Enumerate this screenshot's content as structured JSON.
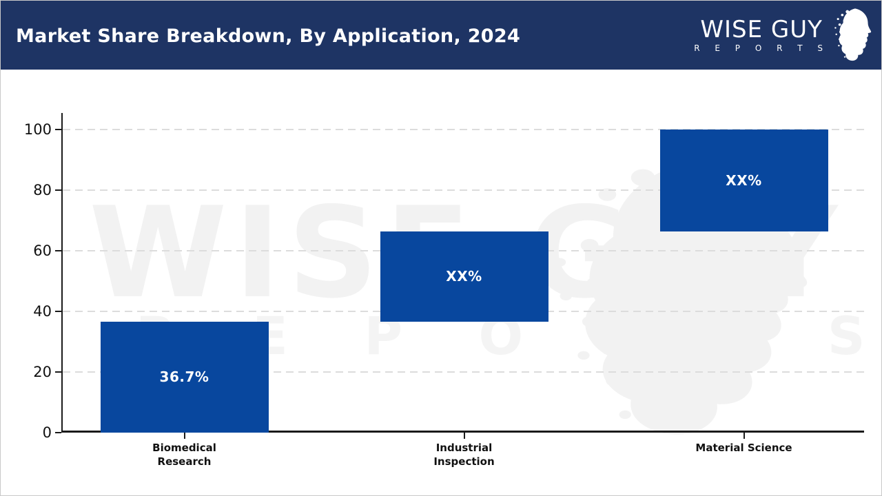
{
  "header": {
    "logo": {
      "line1": "WISE GUY",
      "line2": "R E P O R T S"
    }
  },
  "watermark": {
    "line1": "WISE GUY",
    "line2": "R E P O R T S"
  },
  "colors": {
    "header_bg": "#1e3464",
    "bar": "#08479e",
    "grid": "#dcdcdc",
    "axis": "#1a1a1a",
    "bar_label": "#ffffff",
    "watermark": "#f2f2f2"
  },
  "chart_data": {
    "type": "bar",
    "subtype": "waterfall",
    "title": "Market Share Breakdown, By Application, 2024",
    "categories": [
      "Biomedical Research",
      "Industrial Inspection",
      "Material Science"
    ],
    "bars": [
      {
        "category": "Biomedical Research",
        "tick_lines": [
          "Biomedical",
          "Research"
        ],
        "start": 0,
        "end": 36.7,
        "label": "36.7%"
      },
      {
        "category": "Industrial Inspection",
        "tick_lines": [
          "Industrial",
          "Inspection"
        ],
        "start": 36.7,
        "end": 66.4,
        "label": "XX%"
      },
      {
        "category": "Material Science",
        "tick_lines": [
          "Material Science"
        ],
        "start": 66.4,
        "end": 100,
        "label": "XX%"
      }
    ],
    "xlabel": "",
    "ylabel": "",
    "yticks": [
      0,
      20,
      40,
      60,
      80,
      100
    ],
    "ylim": [
      0,
      105.5
    ],
    "grid": "dashed-horizontal",
    "legend": "none",
    "bar_color": "#08479e",
    "label_color": "#ffffff"
  }
}
